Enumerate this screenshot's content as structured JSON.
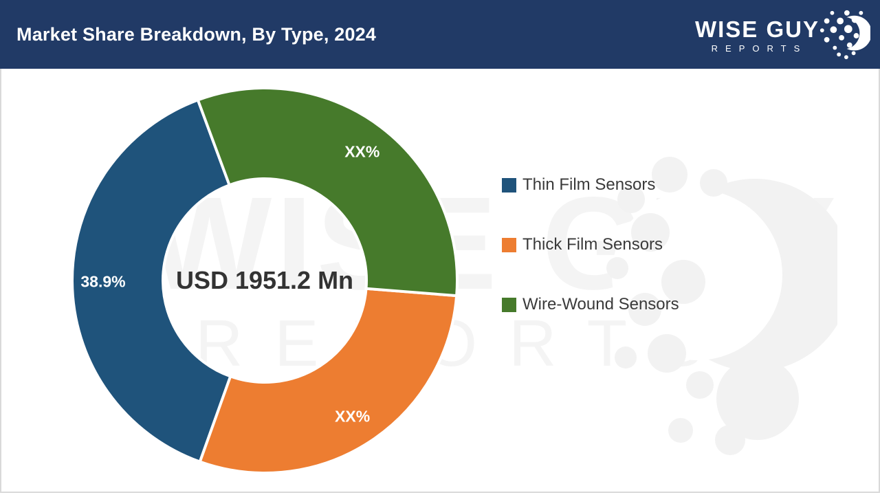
{
  "header": {
    "title": "Market Share Breakdown, By Type, 2024",
    "logo": {
      "line1": "WISE GUY",
      "line2": "REPORTS"
    }
  },
  "watermark": {
    "line1": "WISE GUY",
    "line2": "REPORTS"
  },
  "chart_data": {
    "type": "pie",
    "title": "Market Share Breakdown, By Type, 2024",
    "center_label": "USD 1951.2 Mn",
    "donut": true,
    "legend_position": "right",
    "start_angle_deg": 110.3,
    "direction": "counterclockwise",
    "slices": [
      {
        "name": "Thin Film Sensors",
        "label": "38.9%",
        "value_pct": 38.9,
        "color": "#1F537B"
      },
      {
        "name": "Thick Film Sensors",
        "label": "XX%",
        "value_pct": 29.2,
        "color": "#ED7D31"
      },
      {
        "name": "Wire-Wound Sensors",
        "label": "XX%",
        "value_pct": 31.9,
        "color": "#467A2B"
      }
    ]
  },
  "colors": {
    "header_bg": "#213A66",
    "content_bg": "#FFFFFF",
    "border": "#D9D9D9",
    "text_dark": "#3A3A3A",
    "slice_label_text": "#FFFFFF",
    "watermark": "#F4F4F4"
  }
}
